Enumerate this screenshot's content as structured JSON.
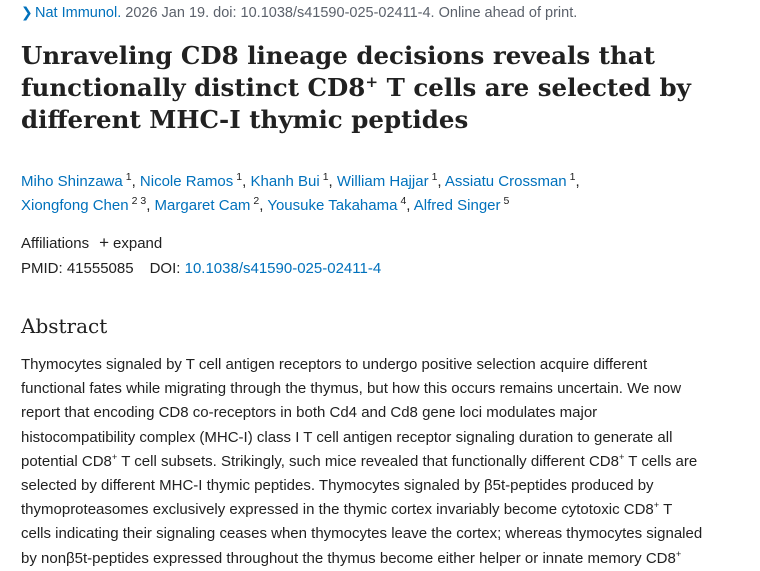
{
  "citation": {
    "journal": "Nat Immunol.",
    "details": "2026 Jan 19. doi: 10.1038/s41590-025-02411-4. Online ahead of print."
  },
  "title": {
    "line1": "Unraveling CD8 lineage decisions reveals that",
    "line2_a": "functionally distinct CD8",
    "line2_sup": "+",
    "line2_b": " T cells are selected by",
    "line3": "different MHC-I thymic peptides"
  },
  "authors": [
    {
      "name": "Miho Shinzawa",
      "aff": "1",
      "sep": ","
    },
    {
      "name": "Nicole Ramos",
      "aff": "1",
      "sep": ","
    },
    {
      "name": "Khanh Bui",
      "aff": "1",
      "sep": ","
    },
    {
      "name": "William Hajjar",
      "aff": "1",
      "sep": ","
    },
    {
      "name": "Assiatu Crossman",
      "aff": "1",
      "sep": ","
    },
    {
      "name": "Xiongfong Chen",
      "aff": "2 3",
      "sep": ","
    },
    {
      "name": "Margaret Cam",
      "aff": "2",
      "sep": ","
    },
    {
      "name": "Yousuke Takahama",
      "aff": "4",
      "sep": ","
    },
    {
      "name": "Alfred Singer",
      "aff": "5",
      "sep": ""
    }
  ],
  "affiliations": {
    "label": "Affiliations",
    "expand_label": "expand"
  },
  "ids": {
    "pmid_label": "PMID:",
    "pmid": "41555085",
    "doi_label": "DOI:",
    "doi": "10.1038/s41590-025-02411-4"
  },
  "abstract": {
    "heading": "Abstract",
    "lines": [
      {
        "t": "Thymocytes signaled by T cell antigen receptors to undergo positive selection acquire different"
      },
      {
        "t": "functional fates while migrating through the thymus, but how this occurs remains uncertain. We now"
      },
      {
        "t": "report that encoding CD8 co-receptors in both Cd4 and Cd8 gene loci modulates major"
      },
      {
        "t": "histocompatibility complex (MHC-I) class I T cell antigen receptor signaling duration to generate all"
      },
      {
        "t": "potential CD8",
        "sup": "+",
        "t2": " T cell subsets. Strikingly, such mice revealed that functionally different CD8",
        "sup2": "+",
        "t3": " T cells are"
      },
      {
        "t": "selected by different MHC-I thymic peptides. Thymocytes signaled by β5t-peptides produced by"
      },
      {
        "t": "thymoproteasomes exclusively expressed in the thymic cortex invariably become cytotoxic CD8",
        "sup": "+",
        "t2": " T"
      },
      {
        "t": "cells indicating their signaling ceases when thymocytes leave the cortex; whereas thymocytes signaled"
      },
      {
        "t": "by nonβ5t-peptides expressed throughout the thymus become either helper or innate memory CD8",
        "sup": "+"
      }
    ]
  }
}
